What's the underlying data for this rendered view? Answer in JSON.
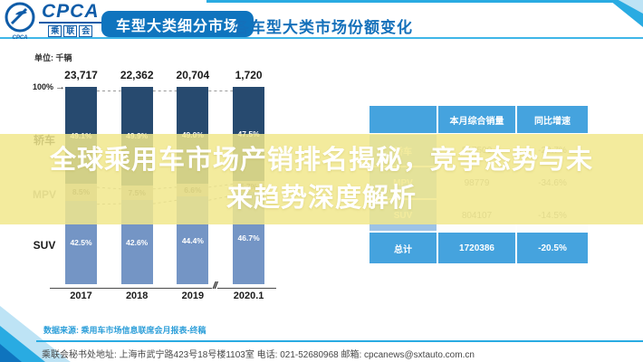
{
  "header": {
    "logo": {
      "brand": "CPCA",
      "sub": [
        "乘",
        "联",
        "会"
      ],
      "circle_caption": "CPCA"
    },
    "title": "车型大类细分市场",
    "subtitle": "各车型大类市场份额变化"
  },
  "banner": {
    "line1": "全球乘用车市场产销排名揭秘，竞争态势与未",
    "line2": "来趋势深度解析"
  },
  "chart_data": {
    "type": "bar",
    "stacked": true,
    "percent_stack": true,
    "title": "车型大类细分市场",
    "unit_label": "单位: 千辆",
    "axis_marker": "100%",
    "axis_break": "//",
    "categories": [
      "2017",
      "2018",
      "2019",
      "2020.1"
    ],
    "totals": [
      "23,717",
      "22,362",
      "20,704",
      "1,720"
    ],
    "series": [
      {
        "name": "轿车",
        "values": [
          49.1,
          49.9,
          49.0,
          47.5
        ],
        "labels": [
          "49.1%",
          "49.9%",
          "49.0%",
          "47.5%"
        ],
        "color": "#274A6F",
        "value_label_color": "#ffffff",
        "name_color": "#1a1a1a"
      },
      {
        "name": "MPV",
        "values": [
          8.5,
          7.5,
          6.6,
          5.7
        ],
        "labels": [
          "8.5%",
          "7.5%",
          "6.6%",
          "5.7%"
        ],
        "color": "#A8A8A8",
        "value_label_color": "#454545",
        "name_color": "#8f8f8f"
      },
      {
        "name": "SUV",
        "values": [
          42.5,
          42.6,
          44.4,
          46.7
        ],
        "labels": [
          "42.5%",
          "42.6%",
          "44.4%",
          "46.7%"
        ],
        "color": "#7495C5",
        "value_label_color": "#ffffff",
        "name_color": "#1a1a1a"
      }
    ],
    "ylim": [
      0,
      100
    ],
    "grid": false,
    "legend_position": "left-category-labels"
  },
  "table": {
    "headers": [
      "",
      "本月综合销量",
      "同比增速"
    ],
    "rows": [
      {
        "label": "轿车",
        "sales": "817500",
        "growth": "-23.7%"
      },
      {
        "label": "MPV",
        "sales": "98779",
        "growth": "-34.6%"
      },
      {
        "label": "SUV",
        "sales": "804107",
        "growth": "-14.5%"
      }
    ],
    "total": {
      "label": "总计",
      "sales": "1720386",
      "growth": "-20.5%"
    }
  },
  "footer": {
    "source": "数据来源: 乘用车市场信息联席会月报表-终稿",
    "address": "乘联会秘书处地址: 上海市武宁路423号18号楼1103室  电话: 021-52680968  邮箱: cpcanews@sxtauto.com.cn"
  },
  "colors": {
    "accent_cyan": "#29ABE2",
    "pill_blue": "#0F74BE",
    "table_blue": "#45A3DE",
    "row_label_blue": "#9DC3E6",
    "sedan_navy": "#274A6F",
    "mpv_gray": "#A8A8A8",
    "suv_blue": "#7495C5",
    "banner_yellow": "#F1E88C"
  }
}
